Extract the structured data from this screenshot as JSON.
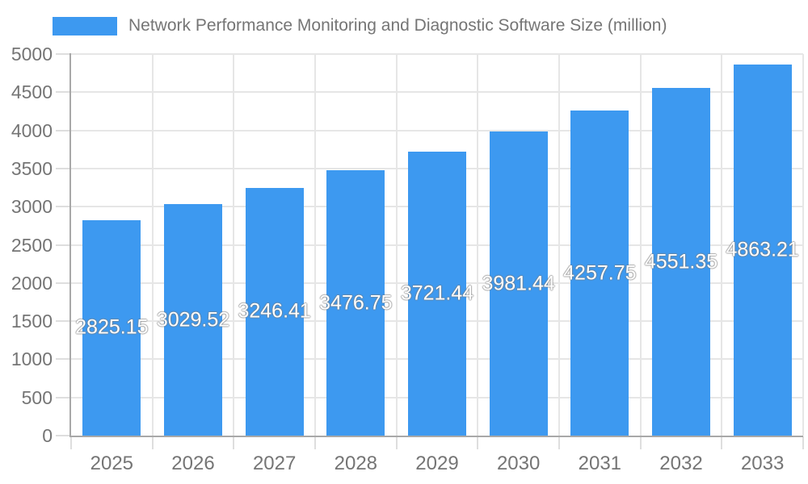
{
  "chart_data": {
    "type": "bar",
    "title": "Network Performance Monitoring and Diagnostic Software Size (million)",
    "legend": {
      "label": "Network Performance Monitoring and Diagnostic Software Size (million)",
      "position": "top-left"
    },
    "categories": [
      "2025",
      "2026",
      "2027",
      "2028",
      "2029",
      "2030",
      "2031",
      "2032",
      "2033"
    ],
    "series": [
      {
        "name": "Network Performance Monitoring and Diagnostic Software Size (million)",
        "values": [
          2825.15,
          3029.52,
          3246.41,
          3476.75,
          3721.44,
          3981.44,
          4257.75,
          4551.35,
          4863.21
        ]
      }
    ],
    "value_labels": [
      "2825.15",
      "3029.52",
      "3246.41",
      "3476.75",
      "3721.44",
      "3981.44",
      "4257.75",
      "4551.35",
      "4863.21"
    ],
    "xlabel": "",
    "ylabel": "",
    "ylim": [
      0,
      5000
    ],
    "ytick_step": 500,
    "ytick_labels": [
      "0",
      "500",
      "1000",
      "1500",
      "2000",
      "2500",
      "3000",
      "3500",
      "4000",
      "4500",
      "5000"
    ],
    "grid": true,
    "colors": {
      "bar": "#3d99f0",
      "axis_line": "#a8a8a8",
      "gridline": "#e6e6e6",
      "tick_mark": "#dedede",
      "axis_text": "#757575",
      "bar_label_text": "#ffffff",
      "background": "#ffffff"
    }
  }
}
